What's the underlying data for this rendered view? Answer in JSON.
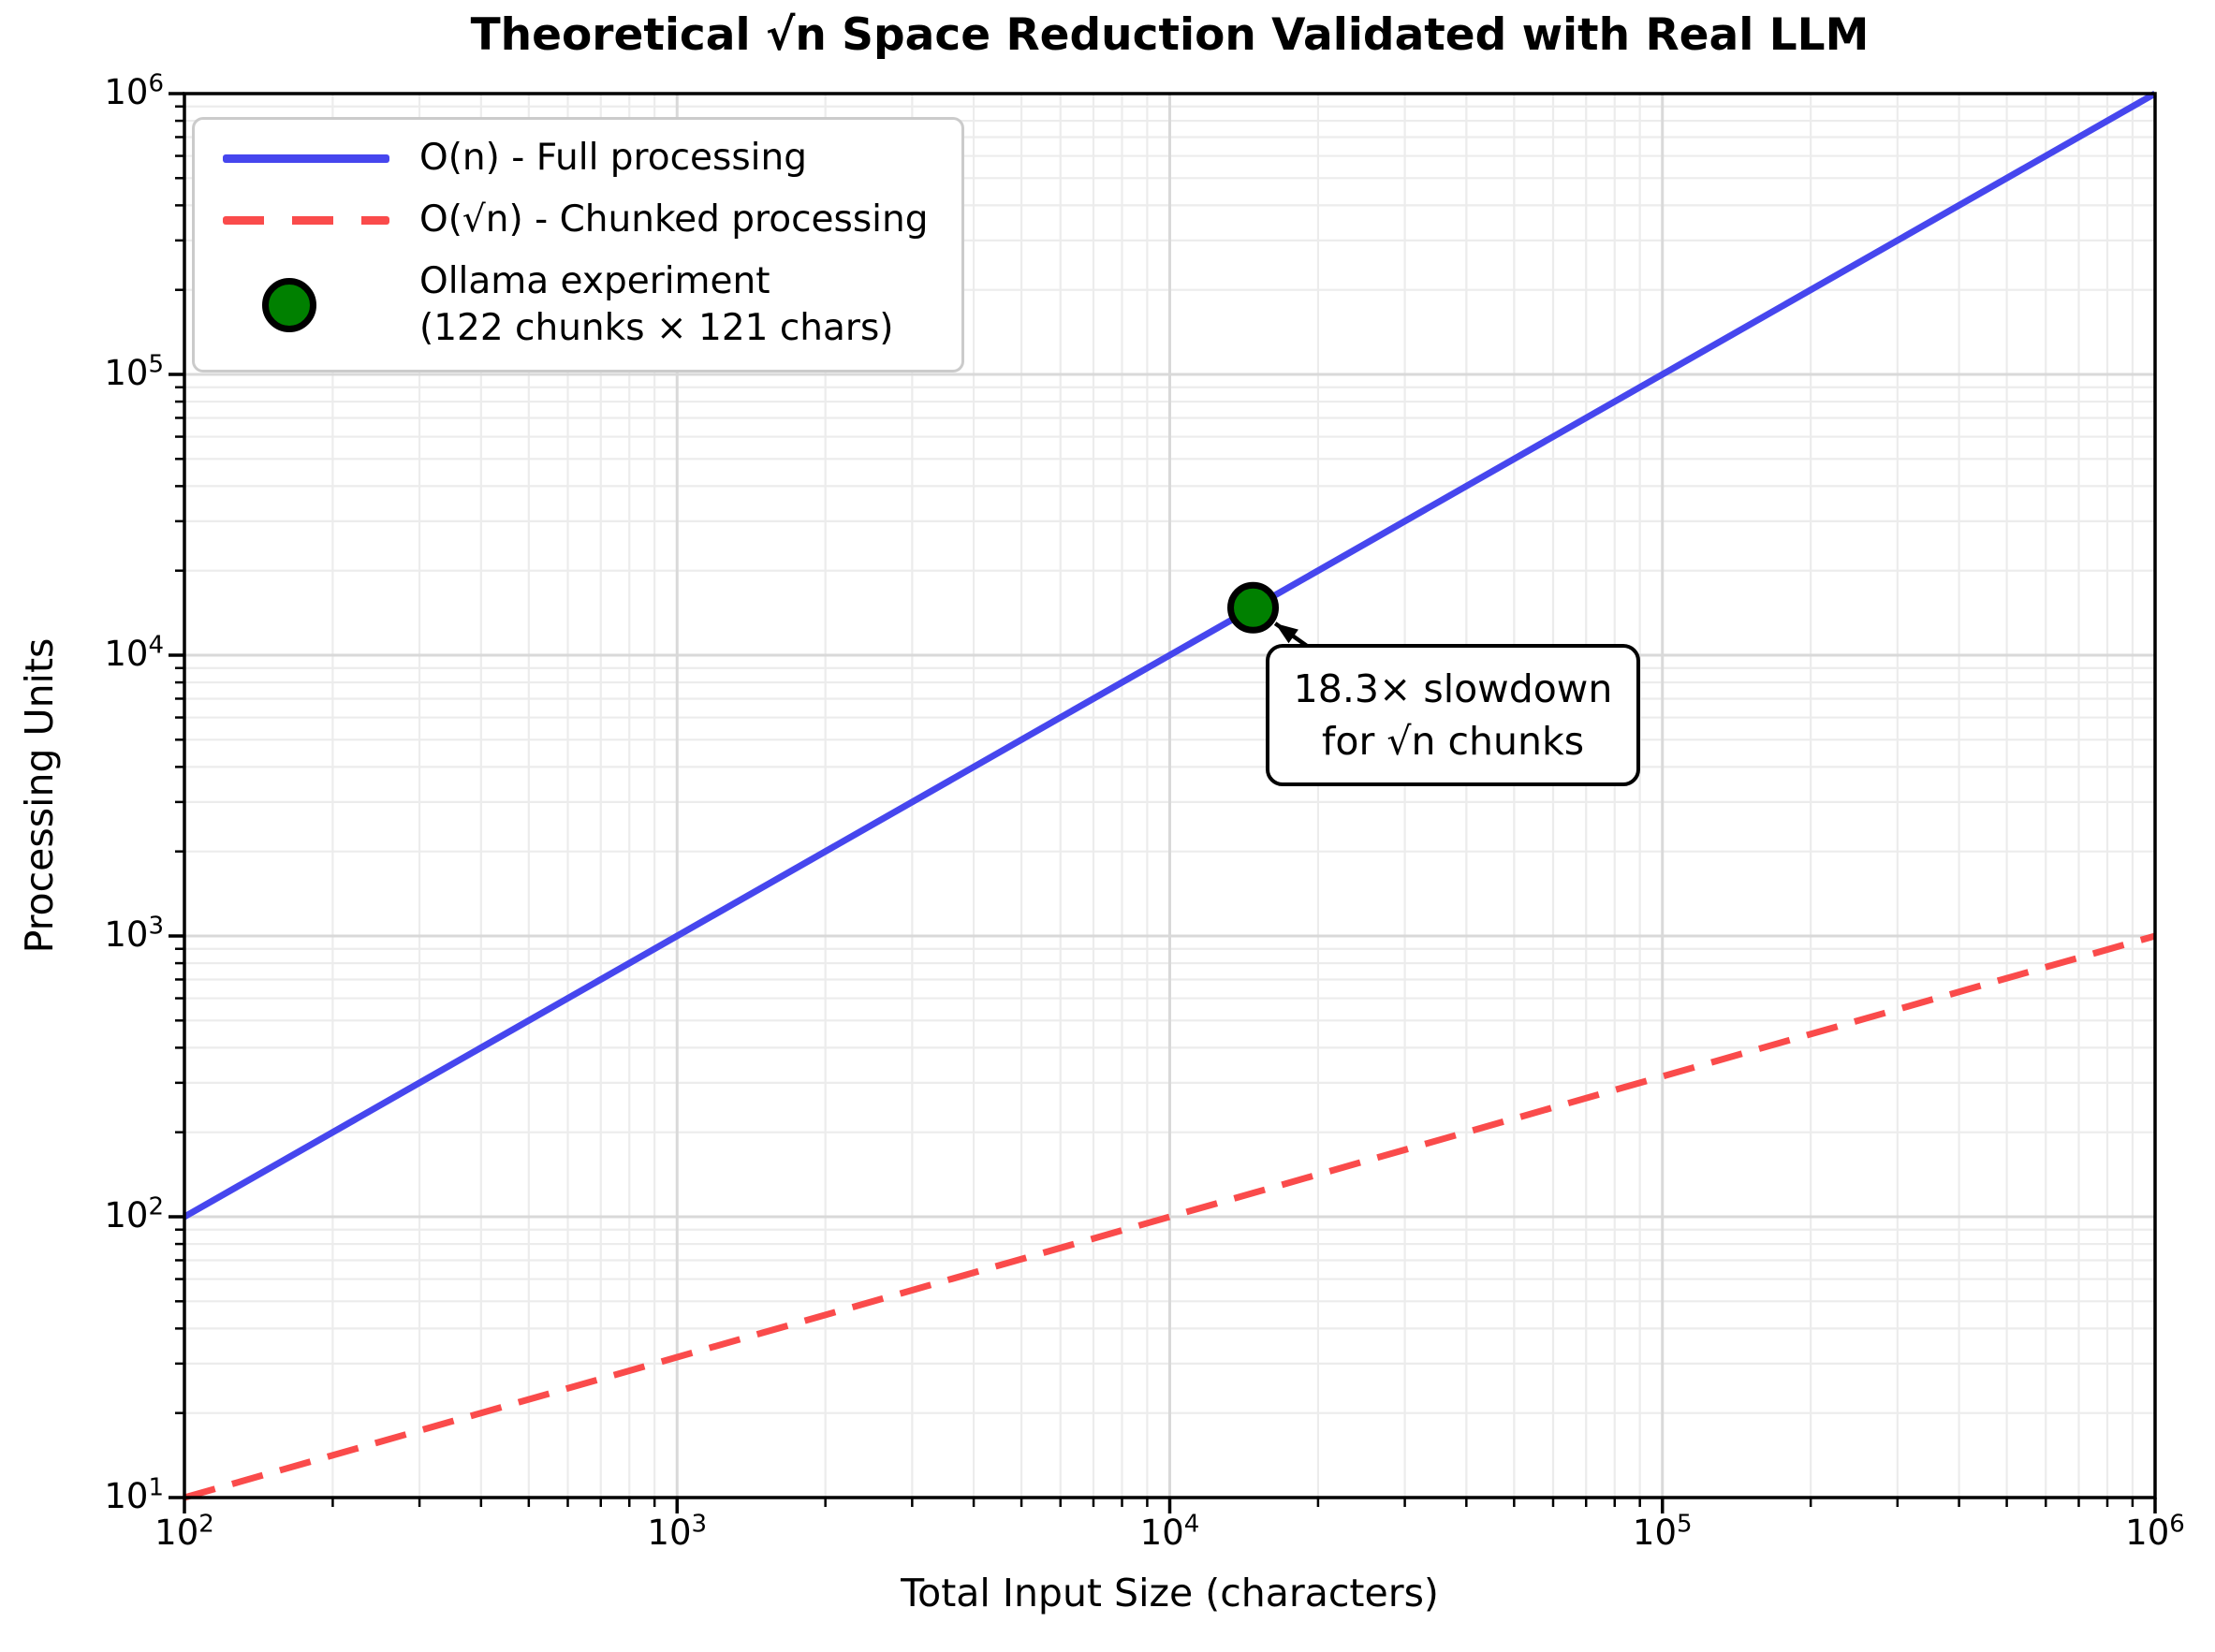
{
  "figure": {
    "background": "#ffffff"
  },
  "title": {
    "text": "Theoretical √n Space Reduction Validated with Real LLM"
  },
  "axes": {
    "xlabel": "Total Input Size (characters)",
    "ylabel": "Processing Units",
    "tick_base": "10",
    "x_tick_exponents": [
      2,
      3,
      4,
      5,
      6
    ],
    "y_tick_exponents": [
      1,
      2,
      3,
      4,
      5,
      6
    ]
  },
  "legend": {
    "items": [
      {
        "swatch": "line-solid",
        "color": "#4646ee",
        "label": "O(n) - Full processing"
      },
      {
        "swatch": "line-dashed",
        "color": "#fa4b4b",
        "label": "O(√n) - Chunked processing"
      },
      {
        "swatch": "marker",
        "color": "#008000",
        "edge_color": "#000000",
        "label_line1": "Ollama experiment",
        "label_line2": "(122 chunks × 121 chars)"
      }
    ]
  },
  "annotation": {
    "line1": "18.3× slowdown",
    "line2": "for √n chunks"
  },
  "colors": {
    "grid_major": "#d9d9d9",
    "grid_minor": "#ececec",
    "spine": "#000000",
    "tick": "#000000"
  },
  "chart_data": {
    "type": "line",
    "title": "Theoretical √n Space Reduction Validated with Real LLM",
    "xlabel": "Total Input Size (characters)",
    "ylabel": "Processing Units",
    "x_scale": "log",
    "y_scale": "log",
    "xlim": [
      100,
      1000000
    ],
    "ylim": [
      10,
      1000000
    ],
    "grid": "both",
    "legend_position": "upper left",
    "series": [
      {
        "name": "O(n) - Full processing",
        "type": "line",
        "line_style": "solid",
        "color": "#4646ee",
        "points": [
          [
            100,
            100
          ],
          [
            1000000,
            1000000
          ]
        ]
      },
      {
        "name": "O(√n) - Chunked processing",
        "type": "line",
        "line_style": "dashed",
        "color": "#fa4b4b",
        "points": [
          [
            100,
            10
          ],
          [
            1000000,
            1000
          ]
        ]
      },
      {
        "name": "Ollama experiment (122 chunks × 121 chars)",
        "type": "scatter",
        "color": "#008000",
        "edge_color": "#000000",
        "points": [
          [
            14762,
            14762
          ]
        ]
      }
    ],
    "annotation": {
      "text": "18.3× slowdown\nfor √n chunks",
      "target": [
        14762,
        14762
      ]
    }
  }
}
